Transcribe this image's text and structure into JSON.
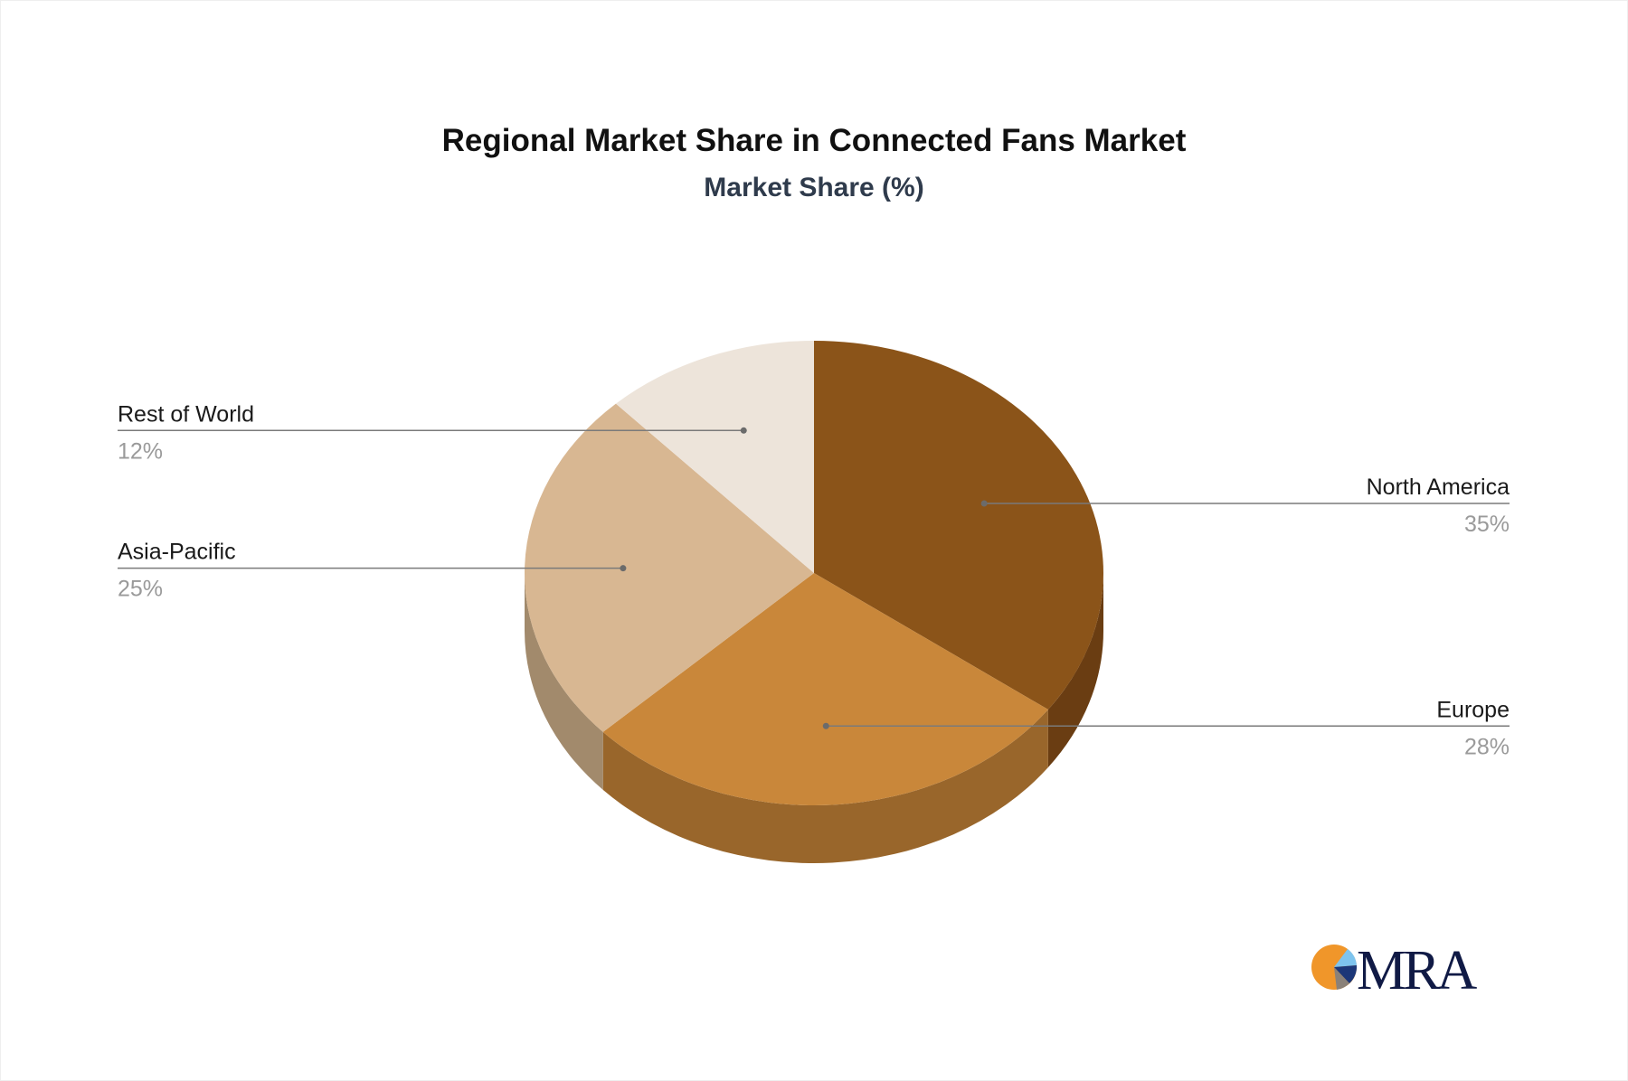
{
  "chart_data": {
    "type": "pie",
    "style": "3d",
    "title": "Regional Market Share in Connected Fans Market",
    "subtitle": "Market Share (%)",
    "slices": [
      {
        "label": "North America",
        "value": 35,
        "display": "35%",
        "color": "#8B5419",
        "side_color": "#6A3D12"
      },
      {
        "label": "Europe",
        "value": 28,
        "display": "28%",
        "color": "#C9873A",
        "side_color": "#99662B"
      },
      {
        "label": "Asia-Pacific",
        "value": 25,
        "display": "25%",
        "color": "#D8B792",
        "side_color": "#A28A6C"
      },
      {
        "label": "Rest of World",
        "value": 12,
        "display": "12%",
        "color": "#EDE4DA",
        "side_color": "#BFB6AC"
      }
    ]
  },
  "logo": {
    "text": "MRA"
  }
}
